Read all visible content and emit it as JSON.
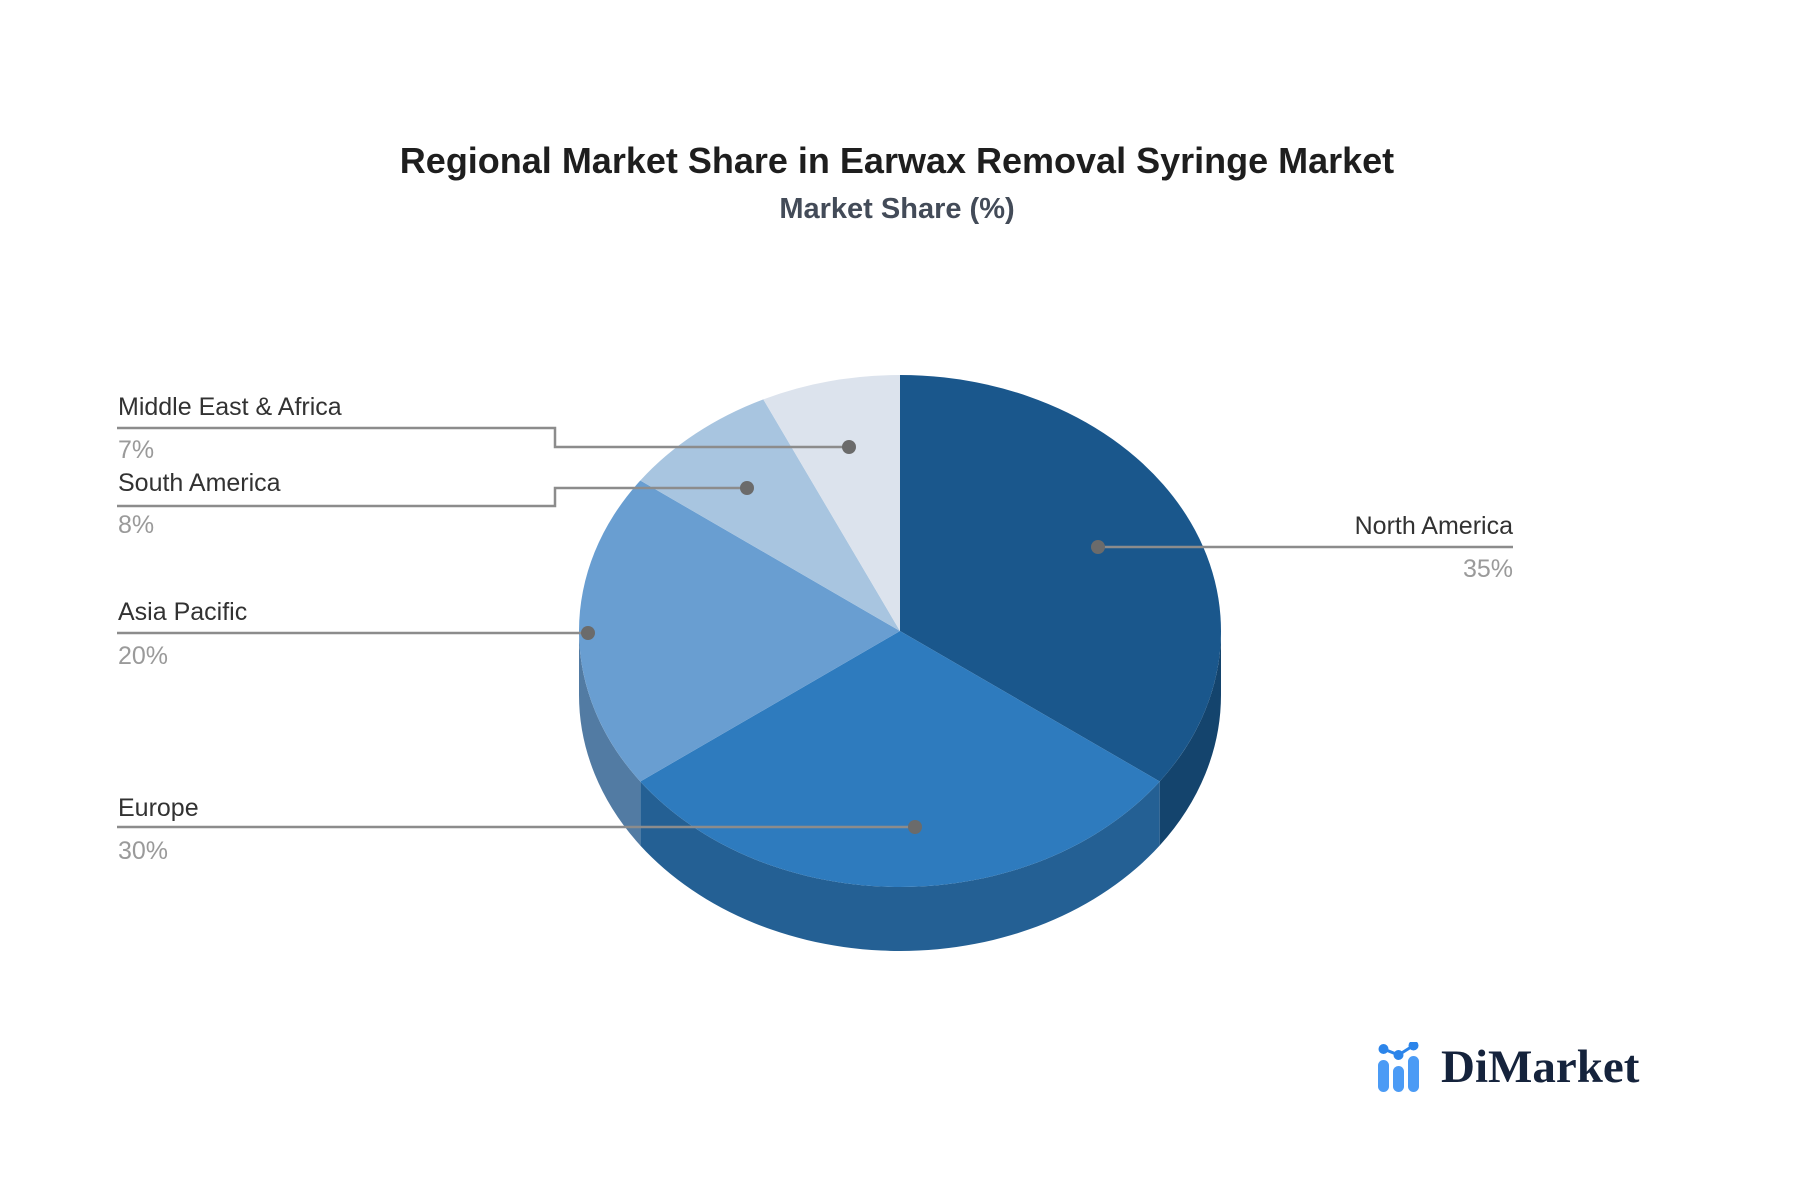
{
  "header": {
    "title": "Regional Market Share in Earwax Removal Syringe Market",
    "subtitle": "Market Share (%)"
  },
  "chart_data": {
    "type": "pie",
    "style": "3d",
    "title": "Regional Market Share in Earwax Removal Syringe Market",
    "subtitle": "Market Share (%)",
    "unit": "%",
    "start_angle": "top",
    "direction": "clockwise",
    "legend_position": "none",
    "labels": "leader-lines",
    "slices": [
      {
        "label": "North America",
        "value": 35,
        "display": "35%",
        "color": "#1A578C"
      },
      {
        "label": "Europe",
        "value": 30,
        "display": "30%",
        "color": "#2E7BBE"
      },
      {
        "label": "Asia Pacific",
        "value": 20,
        "display": "20%",
        "color": "#699ED1"
      },
      {
        "label": "South America",
        "value": 8,
        "display": "8%",
        "color": "#A8C5E0"
      },
      {
        "label": "Middle East & Africa",
        "value": 7,
        "display": "7%",
        "color": "#DCE3ED"
      }
    ],
    "leader_line_color": "#8C8C8C",
    "leader_dot_color": "#6B6B6B",
    "label_color": "#323232",
    "value_color": "#9A9A9A"
  },
  "branding": {
    "logo_text": "DiMarket",
    "logo_text_color": "#15233C",
    "logo_bar_color": "#4B9BF5",
    "logo_dot_color": "#2C85EA"
  }
}
